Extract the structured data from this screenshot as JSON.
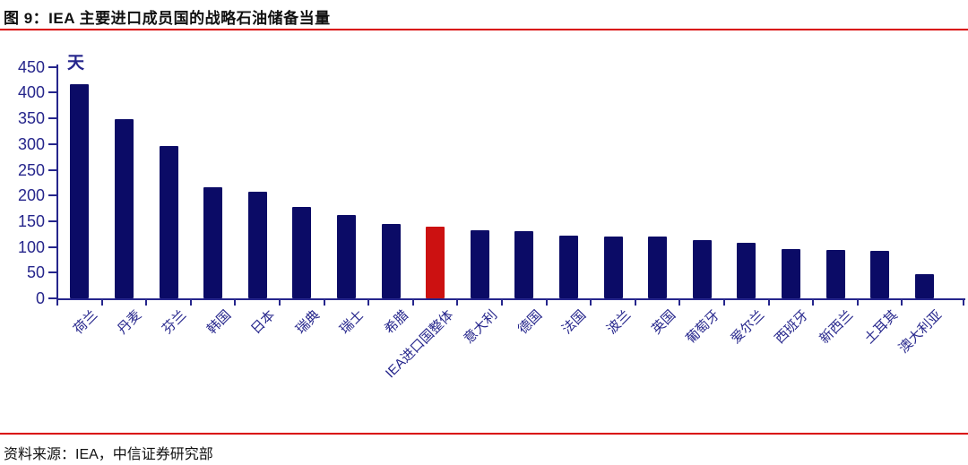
{
  "figure": {
    "title": "图 9：IEA 主要进口成员国的战略石油储备当量",
    "source": "资料来源：IEA，中信证券研究部",
    "rule_color": "#d90000"
  },
  "chart_data": {
    "type": "bar",
    "title": "IEA 主要进口成员国的战略石油储备当量",
    "unit_label": "天",
    "xlabel": "",
    "ylabel": "天",
    "ylim": [
      0,
      450
    ],
    "ytick_step": 50,
    "yticks": [
      0,
      50,
      100,
      150,
      200,
      250,
      300,
      350,
      400,
      450
    ],
    "grid": false,
    "legend": "none",
    "bar_color": "#0b0b66",
    "highlight_color": "#cc1111",
    "axis_color": "#26268c",
    "highlight_index": 8,
    "highlight_category": "IEA进口国整体",
    "categories": [
      "荷兰",
      "丹麦",
      "芬兰",
      "韩国",
      "日本",
      "瑞典",
      "瑞士",
      "希腊",
      "IEA进口国整体",
      "意大利",
      "德国",
      "法国",
      "波兰",
      "英国",
      "葡萄牙",
      "爱尔兰",
      "西班牙",
      "新西兰",
      "土耳其",
      "澳大利亚"
    ],
    "values": [
      417,
      349,
      296,
      216,
      208,
      178,
      162,
      144,
      140,
      132,
      130,
      122,
      121,
      120,
      114,
      108,
      95,
      94,
      93,
      47
    ]
  }
}
